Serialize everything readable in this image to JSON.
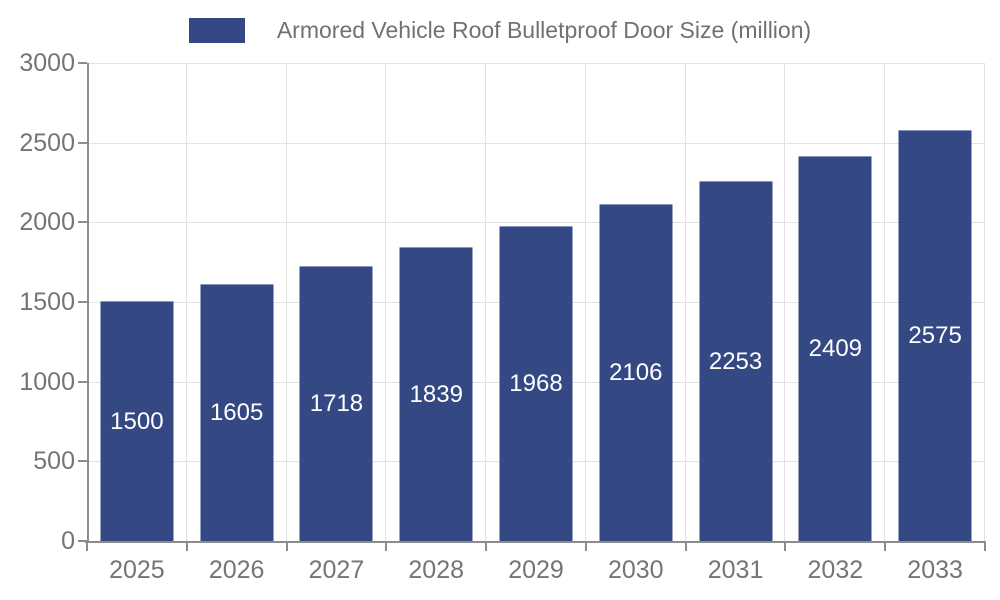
{
  "chart_data": {
    "type": "bar",
    "title": "Armored Vehicle Roof Bulletproof Door Size (million)",
    "legend": {
      "entries": [
        "Armored Vehicle Roof Bulletproof Door Size (million)"
      ],
      "position": "top"
    },
    "categories": [
      "2025",
      "2026",
      "2027",
      "2028",
      "2029",
      "2030",
      "2031",
      "2032",
      "2033"
    ],
    "series": [
      {
        "name": "Armored Vehicle Roof Bulletproof Door Size (million)",
        "values": [
          1500,
          1605,
          1718,
          1839,
          1968,
          2106,
          2253,
          2409,
          2575
        ]
      }
    ],
    "value_labels": [
      "1500",
      "1605",
      "1718",
      "1839",
      "1968",
      "2106",
      "2253",
      "2409",
      "2575"
    ],
    "xlabel": "",
    "ylabel": "",
    "ylim": [
      0,
      3000
    ],
    "yticks": [
      0,
      500,
      1000,
      1500,
      2000,
      2500,
      3000
    ],
    "grid": true,
    "colors": {
      "bar": "#344884",
      "bar_top_edge": "#8a93bd",
      "value_label_text": "#ffffff",
      "axis_line": "#8c8c8c",
      "gridline": "#e2e2e2",
      "axis_text": "#757575",
      "legend_text": "#717171",
      "background": "#ffffff"
    }
  }
}
